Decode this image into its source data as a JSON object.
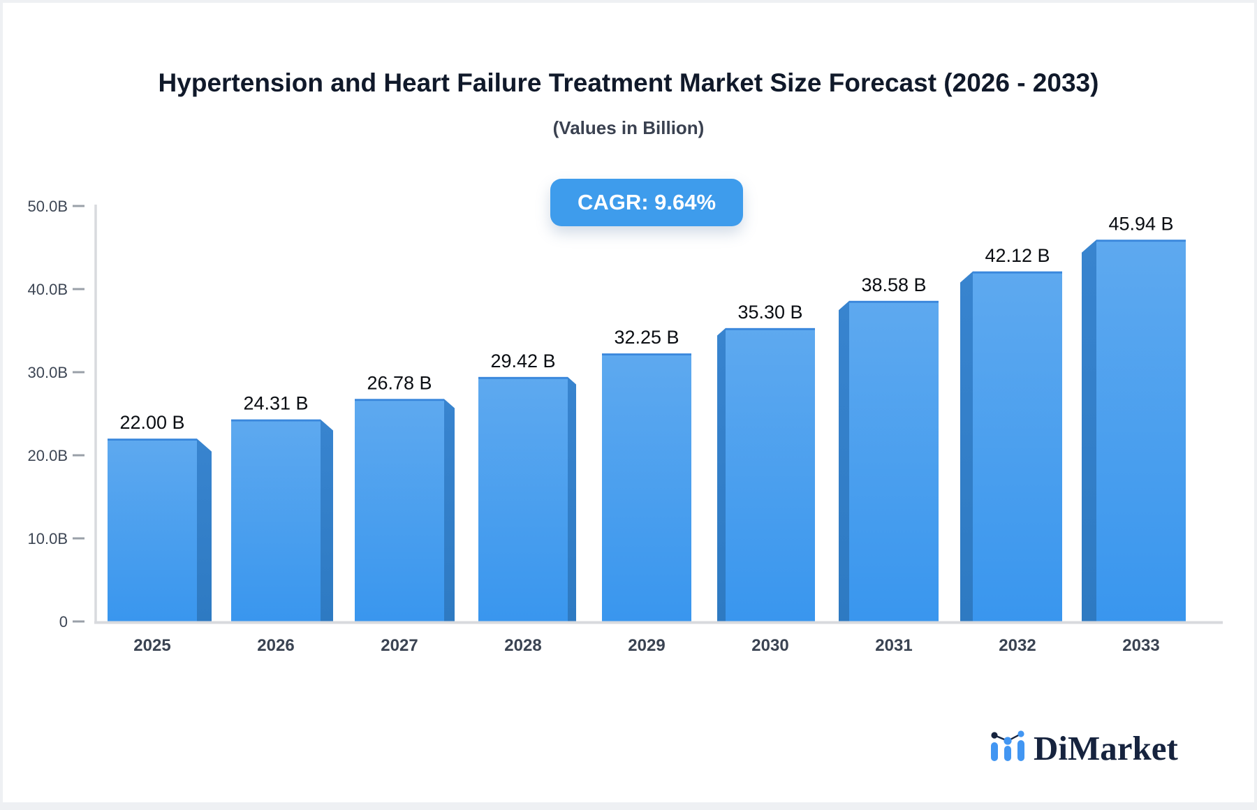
{
  "page": {
    "title": "Hypertension and Heart Failure Treatment Market Size Forecast (2026 - 2033)",
    "subtitle": "(Values in Billion)",
    "cagr_label": "CAGR: 9.64%"
  },
  "branding": {
    "logo_text": "DiMarket",
    "logo_icon": "mini-bar-chart-icon"
  },
  "colors": {
    "badge_bg": "#3E9CEC",
    "bar_face_top": "#5EA9EF",
    "bar_face_bottom": "#3996EE",
    "bar_top_edge": "#3A87DC",
    "bar_side": "#2E7AC2",
    "axis_line": "#D8DADE",
    "tick_dash": "#9AA0A8",
    "tick_label": "#3D4654",
    "x_label": "#3A4352",
    "value_label": "#0A0D12",
    "logo_navy": "#16233E",
    "logo_blue": "#4296F2"
  },
  "chart_data": {
    "type": "bar",
    "title": "Hypertension and Heart Failure Treatment Market Size Forecast (2026 - 2033)",
    "subtitle": "(Values in Billion)",
    "annotation": "CAGR: 9.64%",
    "categories": [
      "2025",
      "2026",
      "2027",
      "2028",
      "2029",
      "2030",
      "2031",
      "2032",
      "2033"
    ],
    "values": [
      22.0,
      24.31,
      26.78,
      29.42,
      32.25,
      35.3,
      38.58,
      42.12,
      45.94
    ],
    "bar_labels": [
      "22.00 B",
      "24.31 B",
      "26.78 B",
      "29.42 B",
      "32.25 B",
      "35.30 B",
      "38.58 B",
      "42.12 B",
      "45.94 B"
    ],
    "unit": "Billion USD",
    "xlabel": "",
    "ylabel": "",
    "ylim": [
      0,
      50
    ],
    "y_ticks": [
      {
        "label": "0",
        "value": 0
      },
      {
        "label": "10.0B",
        "value": 10
      },
      {
        "label": "20.0B",
        "value": 20
      },
      {
        "label": "30.0B",
        "value": 30
      },
      {
        "label": "40.0B",
        "value": 40
      },
      {
        "label": "50.0B",
        "value": 50
      }
    ],
    "grid": false,
    "legend": false,
    "style": "3d-perspective-bars"
  }
}
